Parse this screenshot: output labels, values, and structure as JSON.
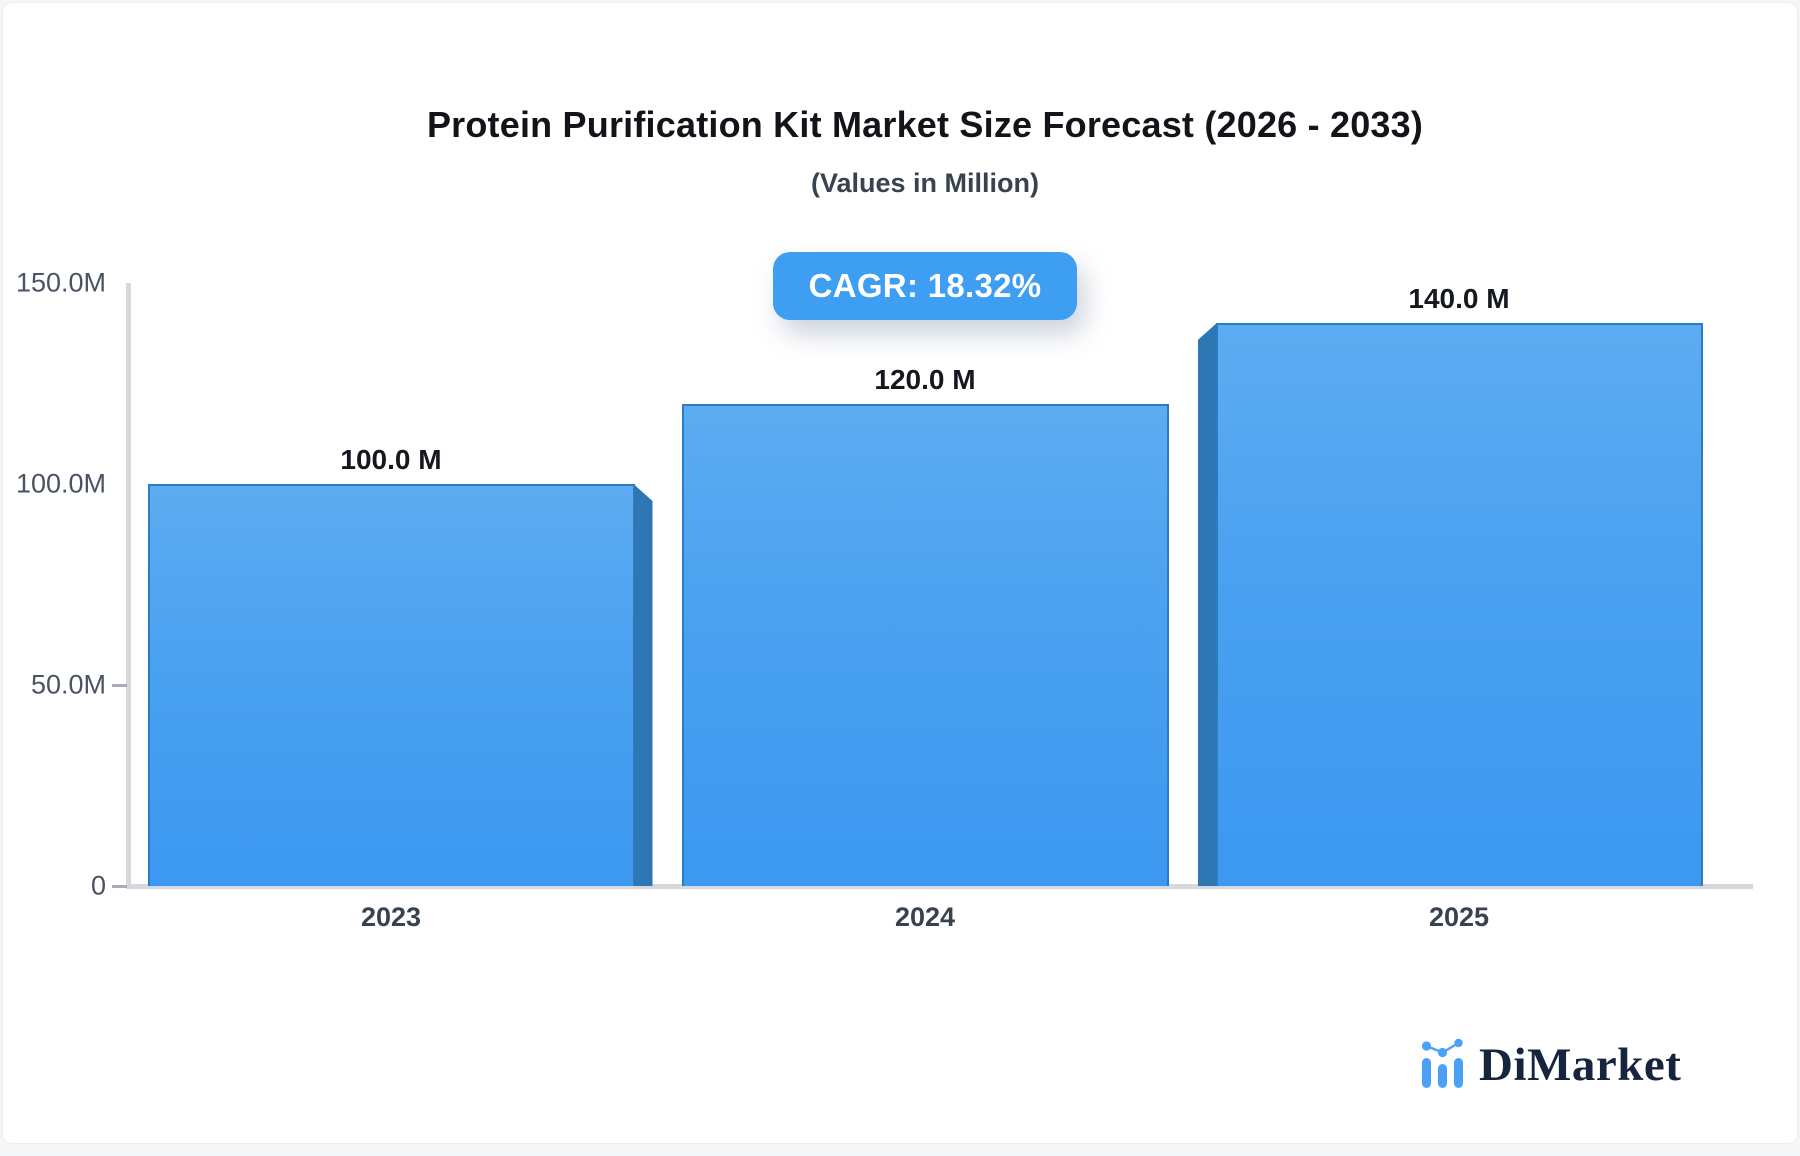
{
  "header": {
    "title": "Protein Purification Kit Market Size Forecast (2026 - 2033)",
    "subtitle": "(Values in Million)",
    "cagr_badge": "CAGR: 18.32%"
  },
  "chart_data": {
    "type": "bar",
    "title": "Protein Purification Kit Market Size Forecast (2026 - 2033)",
    "subtitle": "(Values in Million)",
    "unit": "Million",
    "categories": [
      "2023",
      "2024",
      "2025"
    ],
    "values": [
      100,
      120,
      140
    ],
    "value_labels": [
      "100.0 M",
      "120.0 M",
      "140.0 M"
    ],
    "cagr_percent": 18.32,
    "y_axis": {
      "range": [
        0,
        150
      ],
      "ticks": [
        {
          "label": "150.0M",
          "value": 150,
          "dash": false
        },
        {
          "label": "100.0M",
          "value": 100,
          "dash": false
        },
        {
          "label": "50.0M",
          "value": 50,
          "dash": true
        },
        {
          "label": "0",
          "value": 0,
          "dash": true
        }
      ]
    },
    "grid": false,
    "legend": false,
    "style_3d": true
  },
  "colors": {
    "bar_top": "#5cacf1",
    "bar_bottom": "#3c98f1",
    "bar_border": "#2b7cc2",
    "bar_side": "#2e77b5",
    "badge_bg": "#3d9ef2",
    "badge_text": "#ffffff",
    "axis_line": "#d5d8dd",
    "tick_text": "#4a5363",
    "title_text": "#121419"
  },
  "branding": {
    "logo_text": "DiMarket",
    "logo_icon": "bar-chart-trend-icon",
    "logo_icon_color": "#4aa2f6",
    "logo_text_color": "#17243d"
  }
}
